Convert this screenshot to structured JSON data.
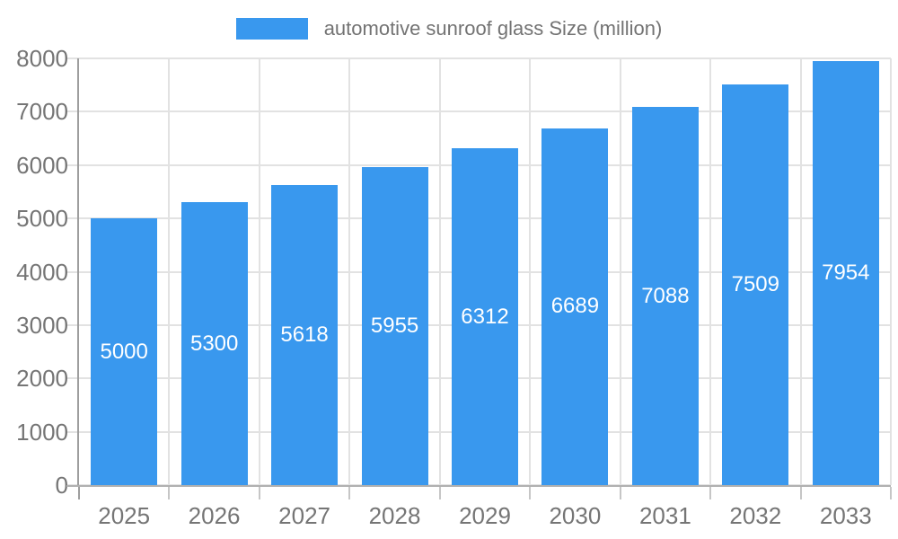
{
  "chart_data": {
    "type": "bar",
    "title": "",
    "legend": {
      "position": "top",
      "label": "automotive sunroof glass Size (million)"
    },
    "categories": [
      "2025",
      "2026",
      "2027",
      "2028",
      "2029",
      "2030",
      "2031",
      "2032",
      "2033"
    ],
    "series": [
      {
        "name": "automotive sunroof glass Size (million)",
        "values": [
          5000,
          5300,
          5618,
          5955,
          6312,
          6689,
          7088,
          7509,
          7954
        ]
      }
    ],
    "value_labels_shown": true,
    "xlabel": "",
    "ylabel": "",
    "ylim": [
      0,
      8000
    ],
    "y_tick_step": 1000,
    "y_tick_labels": [
      "0",
      "1000",
      "2000",
      "3000",
      "4000",
      "5000",
      "6000",
      "7000",
      "8000"
    ],
    "grid": true
  },
  "colors": {
    "bar": "#3998ee",
    "grid": "#e2e2e2",
    "axis_y_line": "#9e9e9e",
    "axis_x_line": "#b0b0b0",
    "boundary_tick": "#c6c6c6",
    "tick_label": "#757575",
    "value_label": "#ffffff",
    "legend_text": "#737373",
    "background": "#ffffff"
  }
}
